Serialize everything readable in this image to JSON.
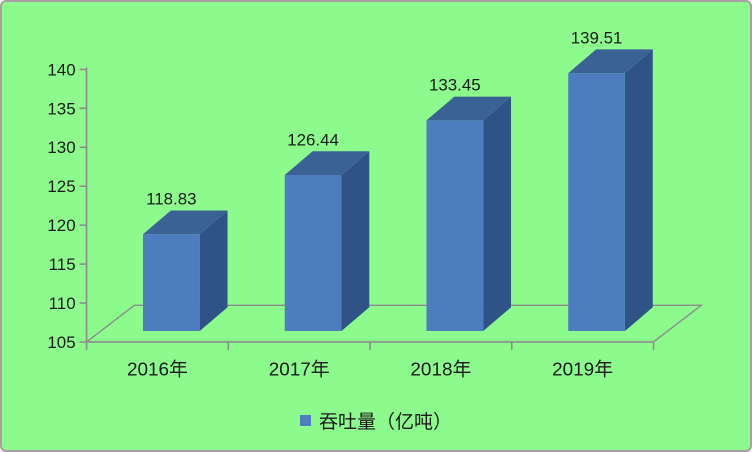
{
  "chart_data": {
    "type": "bar",
    "projection": "3d",
    "title": "",
    "xlabel": "",
    "ylabel": "",
    "categories": [
      "2016年",
      "2017年",
      "2018年",
      "2019年"
    ],
    "series": [
      {
        "name": "吞吐量（亿吨）",
        "values": [
          118.83,
          126.44,
          133.45,
          139.51
        ]
      }
    ],
    "data_labels_shown": true,
    "ylim": [
      105,
      140
    ],
    "ytick_step": 5,
    "ytick_labels": [
      "105",
      "110",
      "115",
      "120",
      "125",
      "130",
      "135",
      "140"
    ],
    "grid": false,
    "legend": {
      "label": "吞吐量（亿吨）",
      "position": "bottom"
    },
    "colors": {
      "background": "#8cfa8c",
      "border": "#a89da3",
      "axis_line": "#8c8c8c",
      "text": "#1a1a1a",
      "bar_front": "#4d7dbe",
      "bar_top": "#3a6294",
      "bar_side": "#2f5287"
    }
  }
}
